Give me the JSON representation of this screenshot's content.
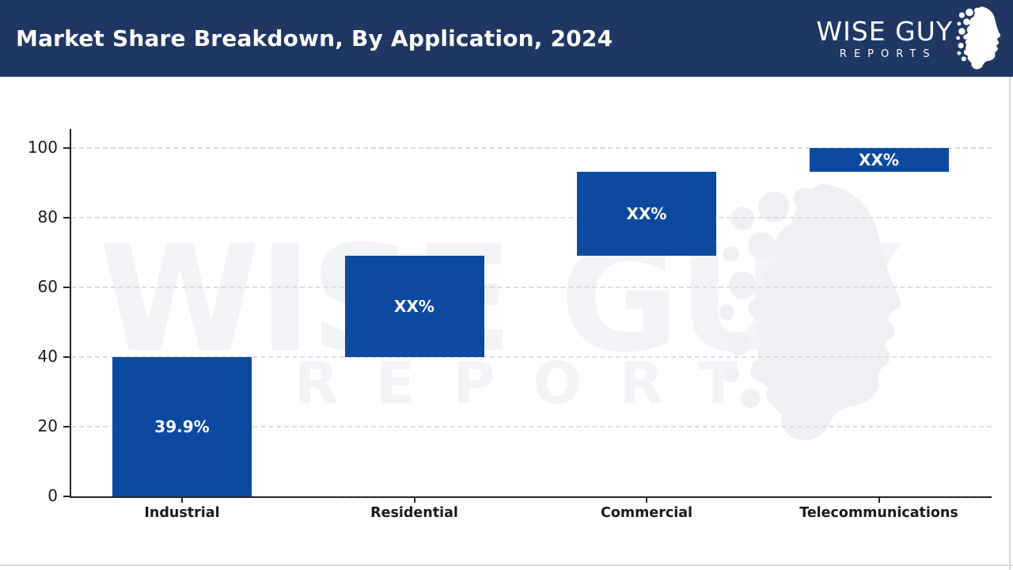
{
  "header": {
    "title": "Market Share Breakdown, By Application, 2024",
    "logo": {
      "name": "WISE GUY",
      "subtitle": "REPORTS"
    }
  },
  "watermark": {
    "line1": "WISE GUY",
    "line2": "REPORTS"
  },
  "colors": {
    "header_bg": "#203764",
    "bar": "#0b4a9f",
    "grid": "#dcdcdc",
    "axis": "#262626",
    "watermark": "#f2f3f6"
  },
  "chart_data": {
    "type": "bar",
    "subtype": "waterfall",
    "title": "Market Share Breakdown, By Application, 2024",
    "categories": [
      "Industrial",
      "Residential",
      "Commercial",
      "Telecommunications"
    ],
    "segments": [
      {
        "category": "Industrial",
        "start": 0,
        "end": 39.9,
        "value": 39.9,
        "label": "39.9%"
      },
      {
        "category": "Residential",
        "start": 39.9,
        "end": 69.1,
        "value": 29.2,
        "label": "XX%"
      },
      {
        "category": "Commercial",
        "start": 69.1,
        "end": 93.2,
        "value": 24.1,
        "label": "XX%"
      },
      {
        "category": "Telecommunications",
        "start": 93.2,
        "end": 100.0,
        "value": 6.8,
        "label": "XX%"
      }
    ],
    "yticks": [
      0,
      20,
      40,
      60,
      80,
      100
    ],
    "ylim": [
      0,
      105.5
    ],
    "xlabel": "",
    "ylabel": "",
    "grid": "horizontal-dashed",
    "legend": null,
    "bar_color": "#0b4a9f",
    "bar_label_color": "#ffffff"
  }
}
